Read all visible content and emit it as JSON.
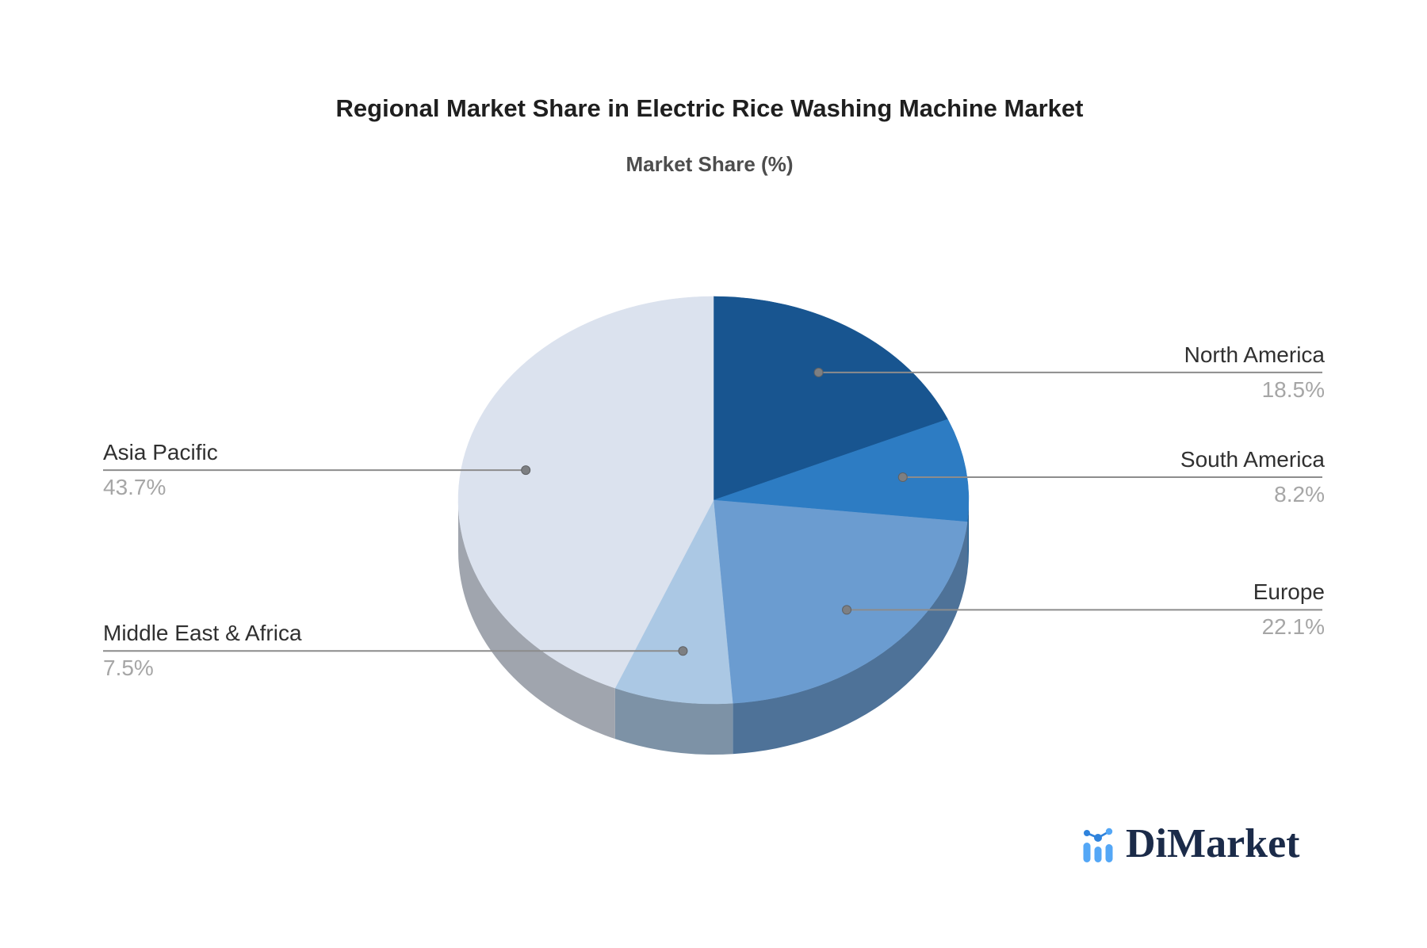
{
  "chart": {
    "title": "Regional Market Share in Electric Rice Washing Machine Market",
    "subtitle": "Market Share (%)"
  },
  "chart_data": {
    "type": "pie",
    "style": "3d-pie-with-depth",
    "title": "Regional Market Share in Electric Rice Washing Machine Market",
    "subtitle": "Market Share (%)",
    "unit": "%",
    "start_angle_deg": 0,
    "direction": "clockwise",
    "legend_position": "none",
    "label_style": "leader-line callouts, name above line, percent below",
    "slices": [
      {
        "label": "North America",
        "value": 18.5,
        "pct_label": "18.5%",
        "color": "#185590",
        "side": "right"
      },
      {
        "label": "South America",
        "value": 8.2,
        "pct_label": "8.2%",
        "color": "#2d7cc3",
        "side": "right"
      },
      {
        "label": "Europe",
        "value": 22.1,
        "pct_label": "22.1%",
        "color": "#6b9cd0",
        "side": "right"
      },
      {
        "label": "Middle East & Africa",
        "value": 7.5,
        "pct_label": "7.5%",
        "color": "#abc8e4",
        "side": "left"
      },
      {
        "label": "Asia Pacific",
        "value": 43.7,
        "pct_label": "43.7%",
        "color": "#dbe2ee",
        "side": "left"
      }
    ],
    "leader_line_color": "#8c8c8c",
    "leader_dot_color": "#7d7f82",
    "label_name_color": "#303030",
    "label_pct_color": "#a6a6a6"
  },
  "branding": {
    "name": "DiMarket",
    "icon": "bar-line-chart-icon",
    "text_color": "#1b2b49",
    "bar_color": "#54a7f6",
    "accent_color": "#2f83dc"
  }
}
